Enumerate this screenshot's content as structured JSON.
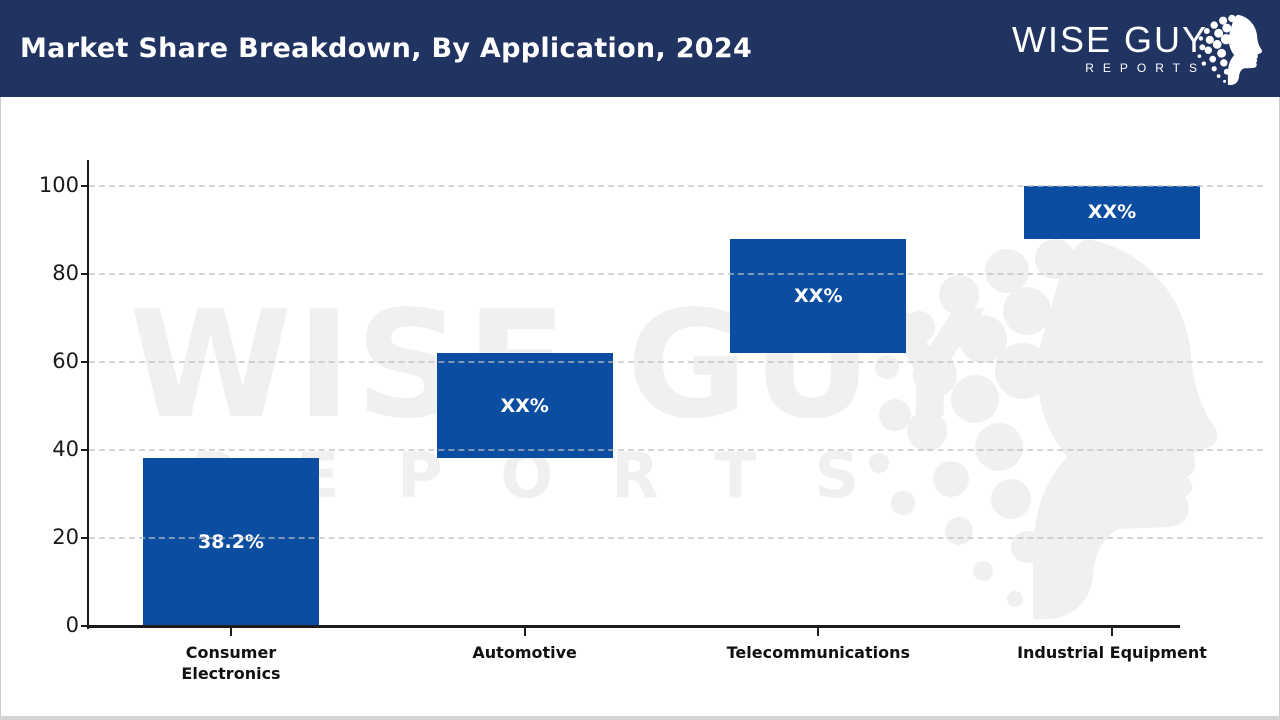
{
  "header": {
    "title": "Market Share Breakdown, By Application, 2024",
    "logo": {
      "line1": "WISE GUY",
      "line2": "REPORTS"
    },
    "bg_color": "#203361"
  },
  "watermark": {
    "line1": "WISE GUY",
    "line2": "REPORTS"
  },
  "chart_data": {
    "type": "bar",
    "subtype": "waterfall",
    "title": "Market Share Breakdown, By Application, 2024",
    "categories": [
      "Consumer Electronics",
      "Automotive",
      "Telecommunications",
      "Industrial Equipment"
    ],
    "segments": [
      [
        0,
        38.2
      ],
      [
        38.2,
        62.0
      ],
      [
        62.0,
        88.0
      ],
      [
        88.0,
        100.0
      ]
    ],
    "bar_labels": [
      "38.2%",
      "XX%",
      "XX%",
      "XX%"
    ],
    "ylim": [
      0,
      100
    ],
    "yticks": [
      0,
      20,
      40,
      60,
      80,
      100
    ],
    "grid": "horizontal-dashed",
    "legend": "none",
    "bar_color": "#0b4da1",
    "label_color": "#ffffff"
  }
}
